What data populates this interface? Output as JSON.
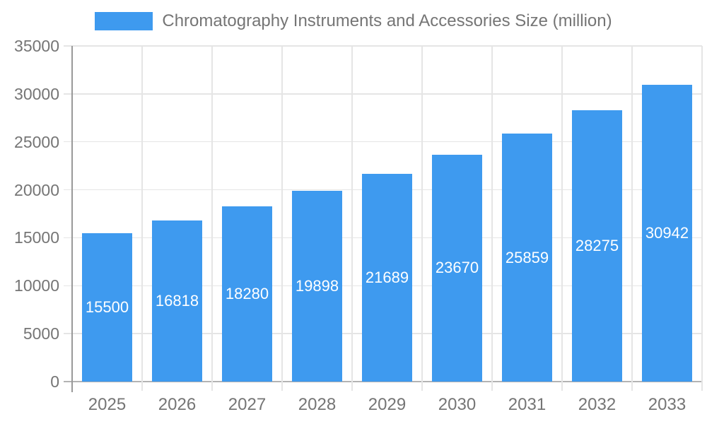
{
  "chart_data": {
    "type": "bar",
    "title": "Chromatography Instruments and Accessories Size (million)",
    "categories": [
      "2025",
      "2026",
      "2027",
      "2028",
      "2029",
      "2030",
      "2031",
      "2032",
      "2033"
    ],
    "values": [
      15500,
      16818,
      18280,
      19898,
      21689,
      23670,
      25859,
      28275,
      30942
    ],
    "xlabel": "",
    "ylabel": "",
    "ylim": [
      0,
      35000
    ],
    "y_ticks": [
      0,
      5000,
      10000,
      15000,
      20000,
      25000,
      30000,
      35000
    ],
    "grid": true,
    "legend_position": "top",
    "value_label_position": "inside-center",
    "colors": {
      "bar": "#3E9AEF",
      "text": "#757575",
      "grid": "#E5E5E5",
      "baseline": "#B3B3B3",
      "axis": "#999999",
      "value_label": "#FFFFFF",
      "background": "#FFFFFF"
    }
  }
}
